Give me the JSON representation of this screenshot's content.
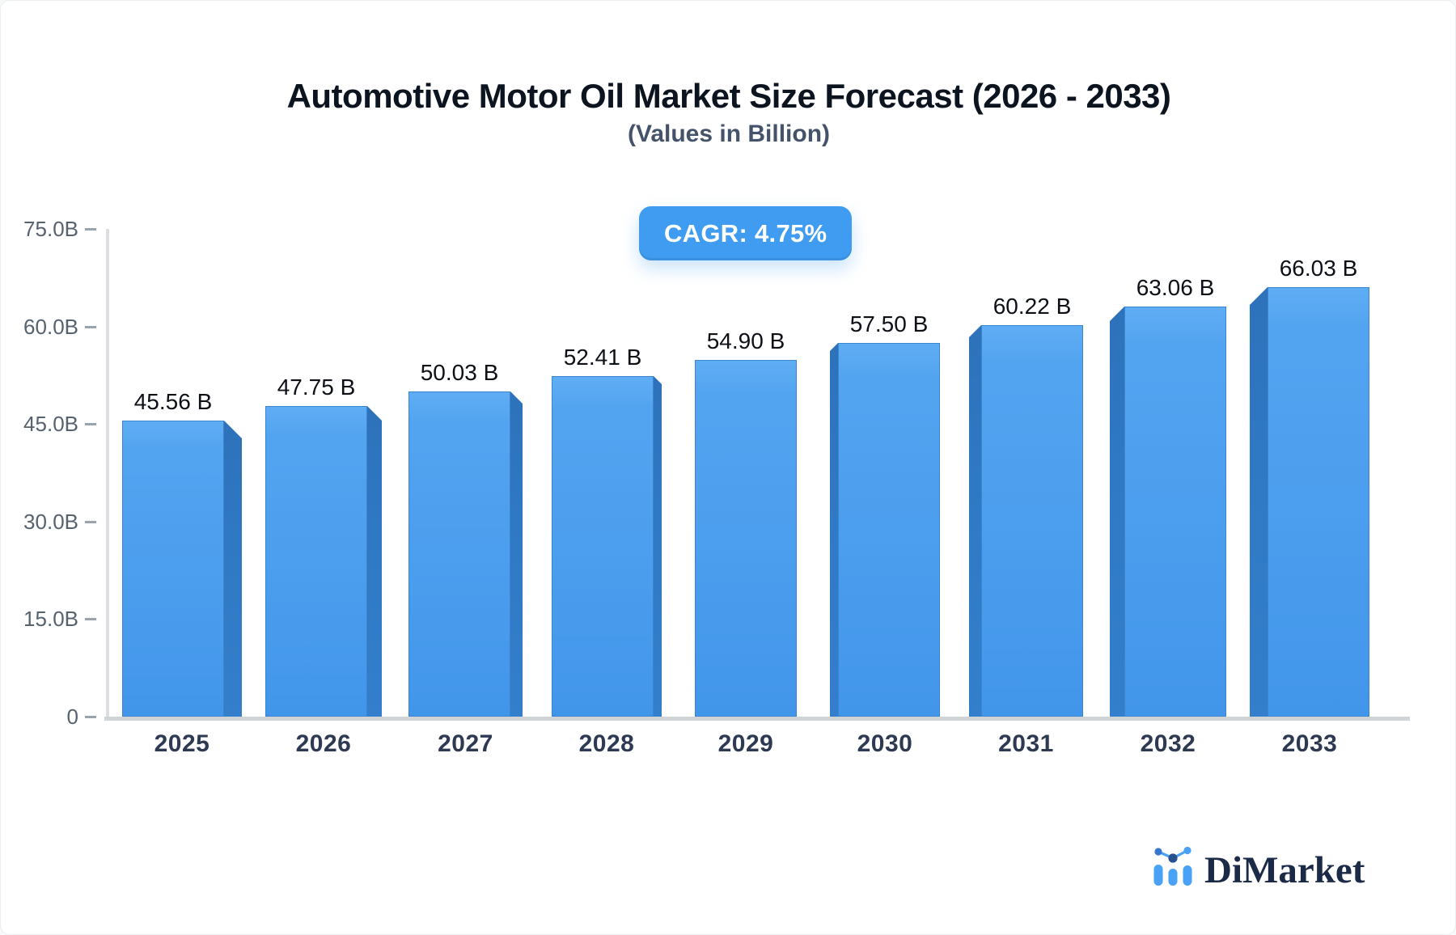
{
  "header": {
    "title": "Automotive Motor Oil Market Size Forecast (2026 - 2033)",
    "subtitle": "(Values in Billion)",
    "badge": "CAGR: 4.75%"
  },
  "chart_data": {
    "type": "bar",
    "title": "Automotive Motor Oil Market Size Forecast (2026 - 2033)",
    "subtitle": "(Values in Billion)",
    "annotation": "CAGR: 4.75%",
    "categories": [
      "2025",
      "2026",
      "2027",
      "2028",
      "2029",
      "2030",
      "2031",
      "2032",
      "2033"
    ],
    "values": [
      45.56,
      47.75,
      50.03,
      52.41,
      54.9,
      57.5,
      60.22,
      63.06,
      66.03
    ],
    "data_labels": [
      "45.56 B",
      "47.75 B",
      "50.03 B",
      "52.41 B",
      "54.90 B",
      "57.50 B",
      "60.22 B",
      "63.06 B",
      "66.03 B"
    ],
    "xlabel": "",
    "ylabel": "",
    "y_tick_labels": [
      "75.0B",
      "60.0B",
      "45.0B",
      "30.0B",
      "15.0B",
      "0"
    ],
    "y_tick_values": [
      75,
      60,
      45,
      30,
      15,
      0
    ],
    "ylim": [
      0,
      75
    ],
    "grid": false,
    "legend": false,
    "colors": {
      "bar_face": "#4c9eee",
      "bar_side": "#2f78c4",
      "badge_background": "#3f9cf1",
      "axis": "#d1d4d7",
      "tick_label": "#57626f",
      "category_label": "#2d3a52",
      "value_label": "#0d1117"
    }
  },
  "logo": {
    "text": "DiMarket"
  }
}
